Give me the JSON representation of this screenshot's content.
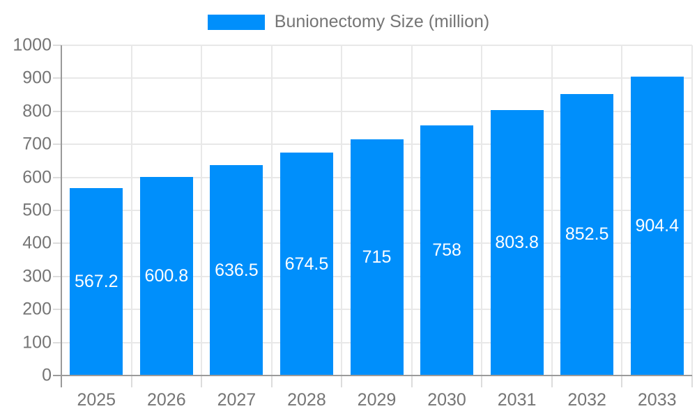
{
  "chart_data": {
    "type": "bar",
    "legend_label": "Bunionectomy Size (million)",
    "legend_position": "top",
    "categories": [
      "2025",
      "2026",
      "2027",
      "2028",
      "2029",
      "2030",
      "2031",
      "2032",
      "2033"
    ],
    "values": [
      567.2,
      600.8,
      636.5,
      674.5,
      715,
      758,
      803.8,
      852.5,
      904.4
    ],
    "value_labels": [
      "567.2",
      "600.8",
      "636.5",
      "674.5",
      "715",
      "758",
      "803.8",
      "852.5",
      "904.4"
    ],
    "ylim": [
      0,
      1000
    ],
    "ytick_interval": 100,
    "grid": true,
    "colors": {
      "bar": "#008FFB",
      "bar_label": "#FFFFFF",
      "axis_text": "#757575",
      "gridline": "#E8E8E8",
      "axis_line": "#9A9A9A",
      "tick": "#DCDCDC"
    }
  }
}
